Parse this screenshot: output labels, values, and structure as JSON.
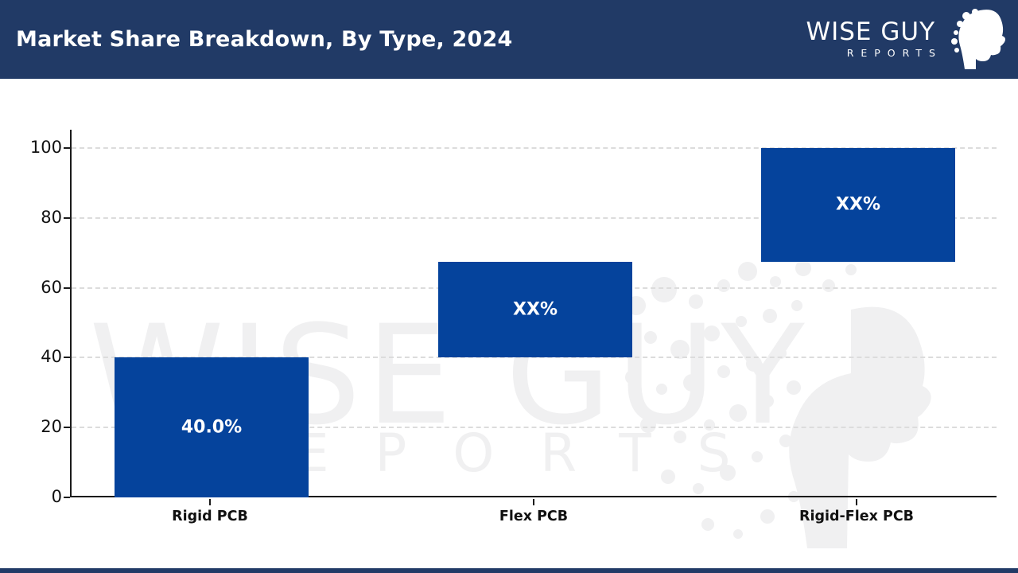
{
  "header": {
    "title": "Market Share Breakdown, By Type, 2024",
    "logo": {
      "primary": "WISE GUY",
      "secondary": "REPORTS"
    }
  },
  "watermark": {
    "primary": "WISE GUY",
    "secondary": "REPORTS"
  },
  "chart_data": {
    "type": "bar",
    "subtype": "floating-waterfall",
    "title": "Market Share Breakdown, By Type, 2024",
    "categories": [
      "Rigid PCB",
      "Flex PCB",
      "Rigid-Flex PCB"
    ],
    "segments": [
      {
        "category": "Rigid PCB",
        "start": 0,
        "end": 40,
        "label": "40.0%"
      },
      {
        "category": "Flex PCB",
        "start": 40,
        "end": 67.5,
        "label": "XX%"
      },
      {
        "category": "Rigid-Flex PCB",
        "start": 67.5,
        "end": 100,
        "label": "XX%"
      }
    ],
    "y_ticks": [
      0,
      20,
      40,
      60,
      80,
      100
    ],
    "ylim": [
      0,
      100
    ],
    "xlabel": "",
    "ylabel": "",
    "grid": "horizontal-dashed",
    "legend": "none",
    "bar_color": "#05439C",
    "value_label_color": "#ffffff"
  },
  "colors": {
    "header_bg": "#213A66",
    "footer_bg": "#213A66",
    "bar": "#05439C",
    "gridline": "#dcdcdc",
    "axis": "#1a1a1a",
    "watermark": "#f0f0f1"
  }
}
